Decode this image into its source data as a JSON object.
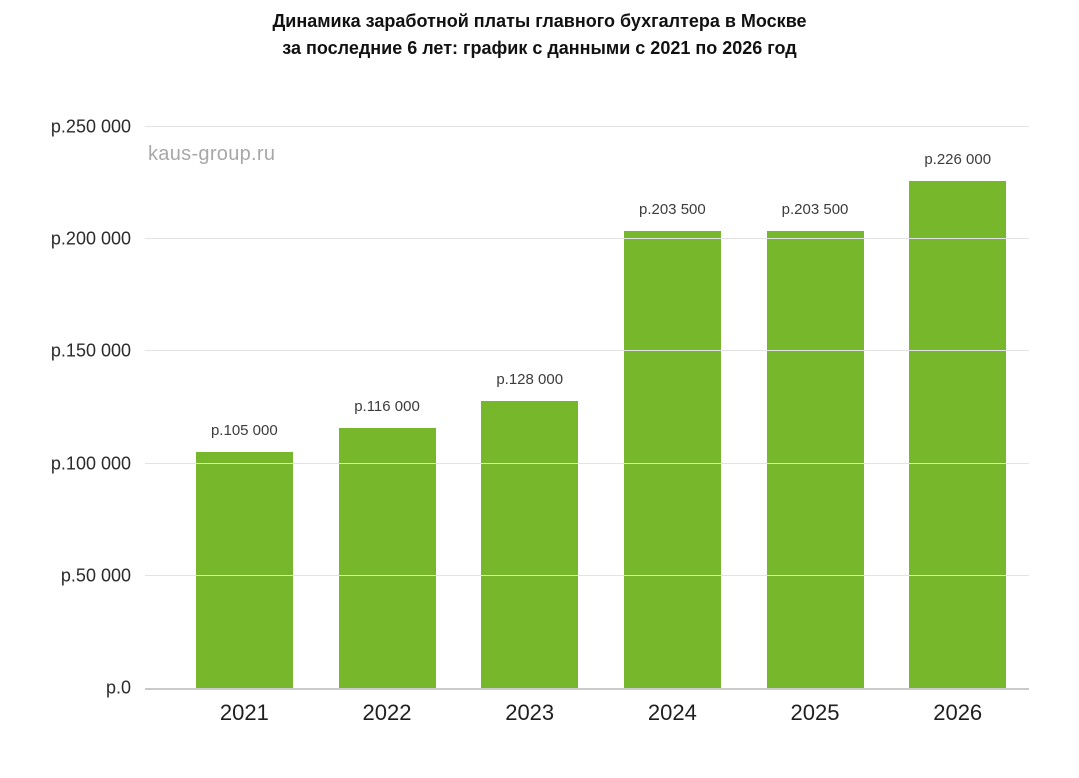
{
  "title": {
    "line1": "Динамика заработной платы главного бухгалтера в Москве",
    "line2": "за последние 6 лет: график с данными с 2021 по 2026 год"
  },
  "watermark": "kaus-group.ru",
  "chart_data": {
    "type": "bar",
    "title": "Динамика заработной платы главного бухгалтера в Москве за последние 6 лет: график с данными с 2021 по 2026 год",
    "categories": [
      "2021",
      "2022",
      "2023",
      "2024",
      "2025",
      "2026"
    ],
    "values": [
      105000,
      116000,
      128000,
      203500,
      203500,
      226000
    ],
    "bar_labels": [
      "р.105 000",
      "р.116 000",
      "р.128 000",
      "р.203 500",
      "р.203 500",
      "р.226 000"
    ],
    "y_ticks": [
      {
        "value": 0,
        "label": "р.0"
      },
      {
        "value": 50000,
        "label": "р.50 000"
      },
      {
        "value": 100000,
        "label": "р.100 000"
      },
      {
        "value": 150000,
        "label": "р.150 000"
      },
      {
        "value": 200000,
        "label": "р.200 000"
      },
      {
        "value": 250000,
        "label": "р.250 000"
      }
    ],
    "xlabel": "",
    "ylabel": "",
    "ylim": [
      0,
      250000
    ],
    "grid": true,
    "legend": "none",
    "bar_color": "#76b72b",
    "background_color": "#ffffff"
  }
}
